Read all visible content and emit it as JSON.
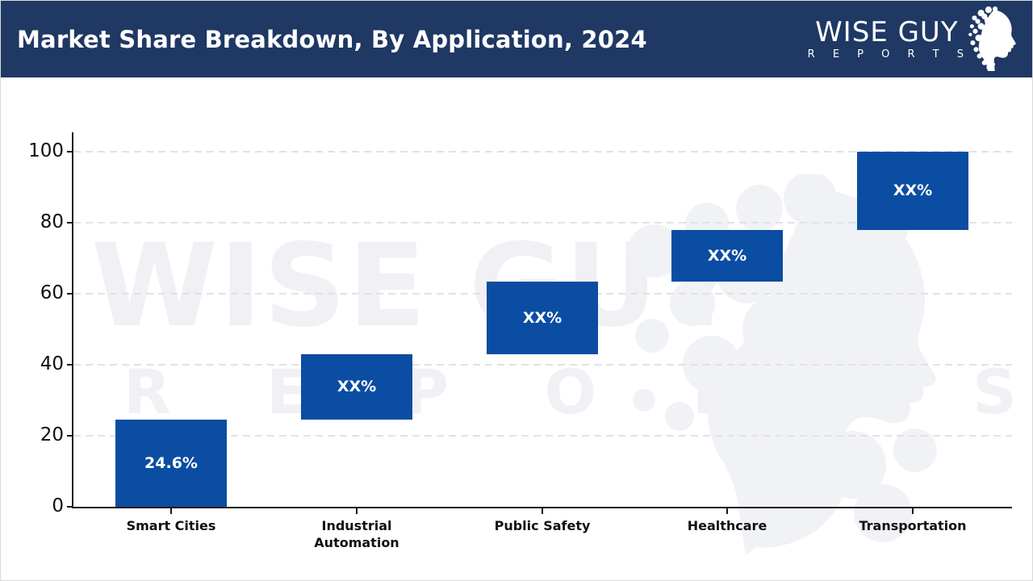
{
  "header": {
    "title": "Market Share Breakdown, By Application, 2024",
    "brand": {
      "line1": "WISE GUY",
      "line2": "R E P O R T S"
    }
  },
  "watermark": {
    "line1": "WISE GUY",
    "line2": "R E P O R T S"
  },
  "colors": {
    "header_bg": "#1f3864",
    "bar": "#0b4da2",
    "bar_label": "#ffffff",
    "grid": "#e2e2e4",
    "axis": "#1a1a1a",
    "watermark": "#f1f1f5"
  },
  "chart_data": {
    "type": "bar",
    "subtype": "waterfall-floating-bars",
    "title": "Market Share Breakdown, By Application, 2024",
    "categories": [
      "Smart Cities",
      "Industrial Automation",
      "Public Safety",
      "Healthcare",
      "Transportation"
    ],
    "tick_labels": [
      "Smart Cities",
      "Industrial\nAutomation",
      "Public Safety",
      "Healthcare",
      "Transportation"
    ],
    "segments": [
      {
        "category": "Smart Cities",
        "start": 0,
        "end": 24.6,
        "label": "24.6%"
      },
      {
        "category": "Industrial Automation",
        "start": 24.6,
        "end": 43.0,
        "label": "XX%"
      },
      {
        "category": "Public Safety",
        "start": 43.0,
        "end": 63.5,
        "label": "XX%"
      },
      {
        "category": "Healthcare",
        "start": 63.5,
        "end": 78.0,
        "label": "XX%"
      },
      {
        "category": "Transportation",
        "start": 78.0,
        "end": 100,
        "label": "XX%"
      }
    ],
    "xlabel": "",
    "ylabel": "",
    "ylim": [
      0,
      100
    ],
    "yticks": [
      0,
      20,
      40,
      60,
      80,
      100
    ],
    "grid": "horizontal-dashed",
    "legend": "none",
    "bar_color": "#0b4da2",
    "label_color": "#ffffff"
  }
}
